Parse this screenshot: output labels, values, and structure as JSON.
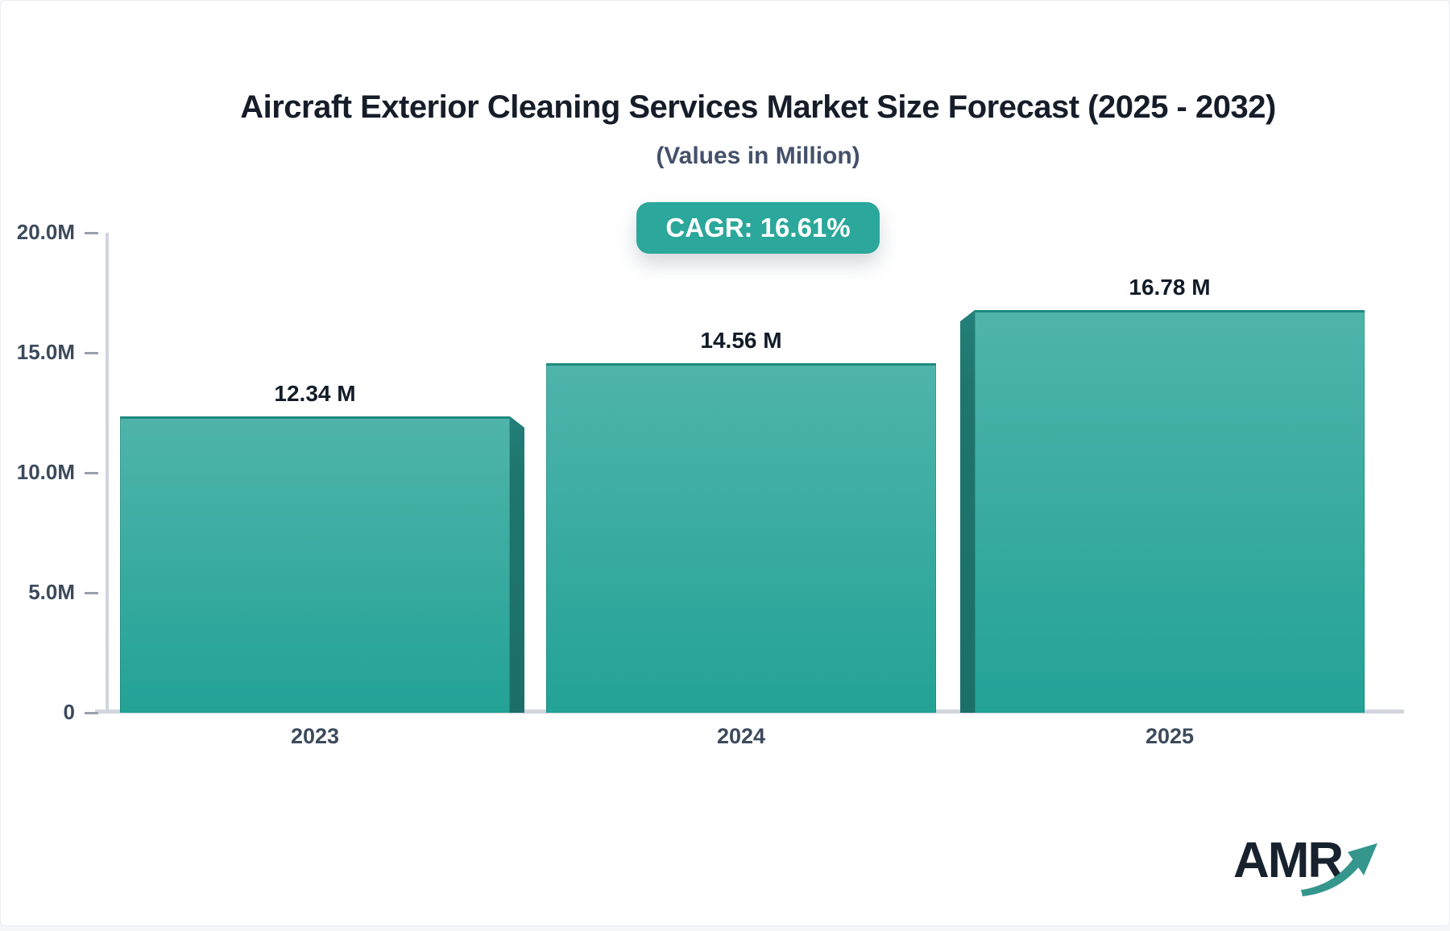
{
  "logo": {
    "text": "AMR"
  },
  "chart_data": {
    "type": "bar",
    "title": "Aircraft Exterior Cleaning Services Market Size Forecast (2025 - 2032)",
    "subtitle": "(Values in Million)",
    "cagr_label": "CAGR: 16.61%",
    "categories": [
      "2023",
      "2024",
      "2025"
    ],
    "values": [
      12.34,
      14.56,
      16.78
    ],
    "value_labels": [
      "12.34 M",
      "14.56 M",
      "16.78 M"
    ],
    "unit": "Million",
    "xlabel": "",
    "ylabel": "",
    "ylim": [
      0,
      20
    ],
    "yticks": [
      {
        "value": 0,
        "label": "0"
      },
      {
        "value": 5,
        "label": "5.0M"
      },
      {
        "value": 10,
        "label": "10.0M"
      },
      {
        "value": 15,
        "label": "15.0M"
      },
      {
        "value": 20,
        "label": "20.0M"
      }
    ],
    "grid": false,
    "legend": false,
    "colors": {
      "bar_gradient_top": "#4fb4ab",
      "bar_gradient_bottom": "#23a296",
      "bar_top_edge": "#1f8a80",
      "bar_side_3d": "#1f766e",
      "badge_background": "#2ba79b",
      "badge_text": "#ffffff",
      "title_text": "#161d29",
      "axis_label_text": "#3d4a5c",
      "axis_line": "#d2d5de"
    }
  }
}
